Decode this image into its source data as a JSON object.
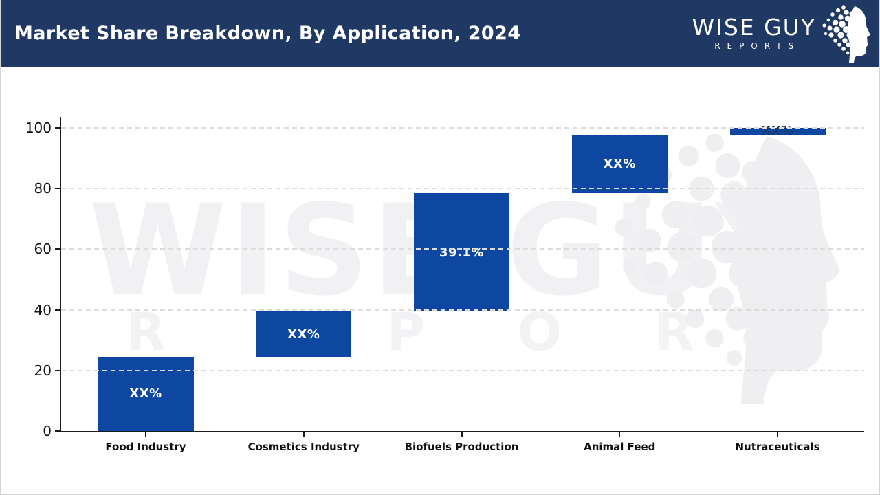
{
  "header": {
    "title": "Market Share Breakdown, By Application, 2024",
    "logo": {
      "line1": "WISE GUY",
      "line2": "REPORTS"
    }
  },
  "watermark": {
    "line1": "WISE GUY",
    "line2": "R E P O R T S"
  },
  "chart_data": {
    "type": "bar",
    "subtype": "waterfall",
    "title": "Market Share Breakdown, By Application, 2024",
    "xlabel": "",
    "ylabel": "",
    "ylim": [
      0,
      100
    ],
    "yticks": [
      0,
      20,
      40,
      60,
      80,
      100
    ],
    "grid": "horizontal-dashed",
    "legend": "none",
    "bar_color": "#0d47a1",
    "categories": [
      "Food Industry",
      "Cosmetics Industry",
      "Biofuels Production",
      "Animal Feed",
      "Nutraceuticals"
    ],
    "segments": [
      {
        "category": "Food Industry",
        "start": 0,
        "end": 24.5,
        "label": "XX%",
        "label_color": "#ffffff"
      },
      {
        "category": "Cosmetics Industry",
        "start": 24.5,
        "end": 39.4,
        "label": "XX%",
        "label_color": "#ffffff"
      },
      {
        "category": "Biofuels Production",
        "start": 39.4,
        "end": 78.5,
        "label": "39.1%",
        "value": 39.1,
        "label_color": "#ffffff"
      },
      {
        "category": "Animal Feed",
        "start": 78.5,
        "end": 97.8,
        "label": "XX%",
        "label_color": "#ffffff"
      },
      {
        "category": "Nutraceuticals",
        "start": 97.8,
        "end": 100,
        "label": "XX%",
        "label_color": "#1a3a6b"
      }
    ]
  }
}
